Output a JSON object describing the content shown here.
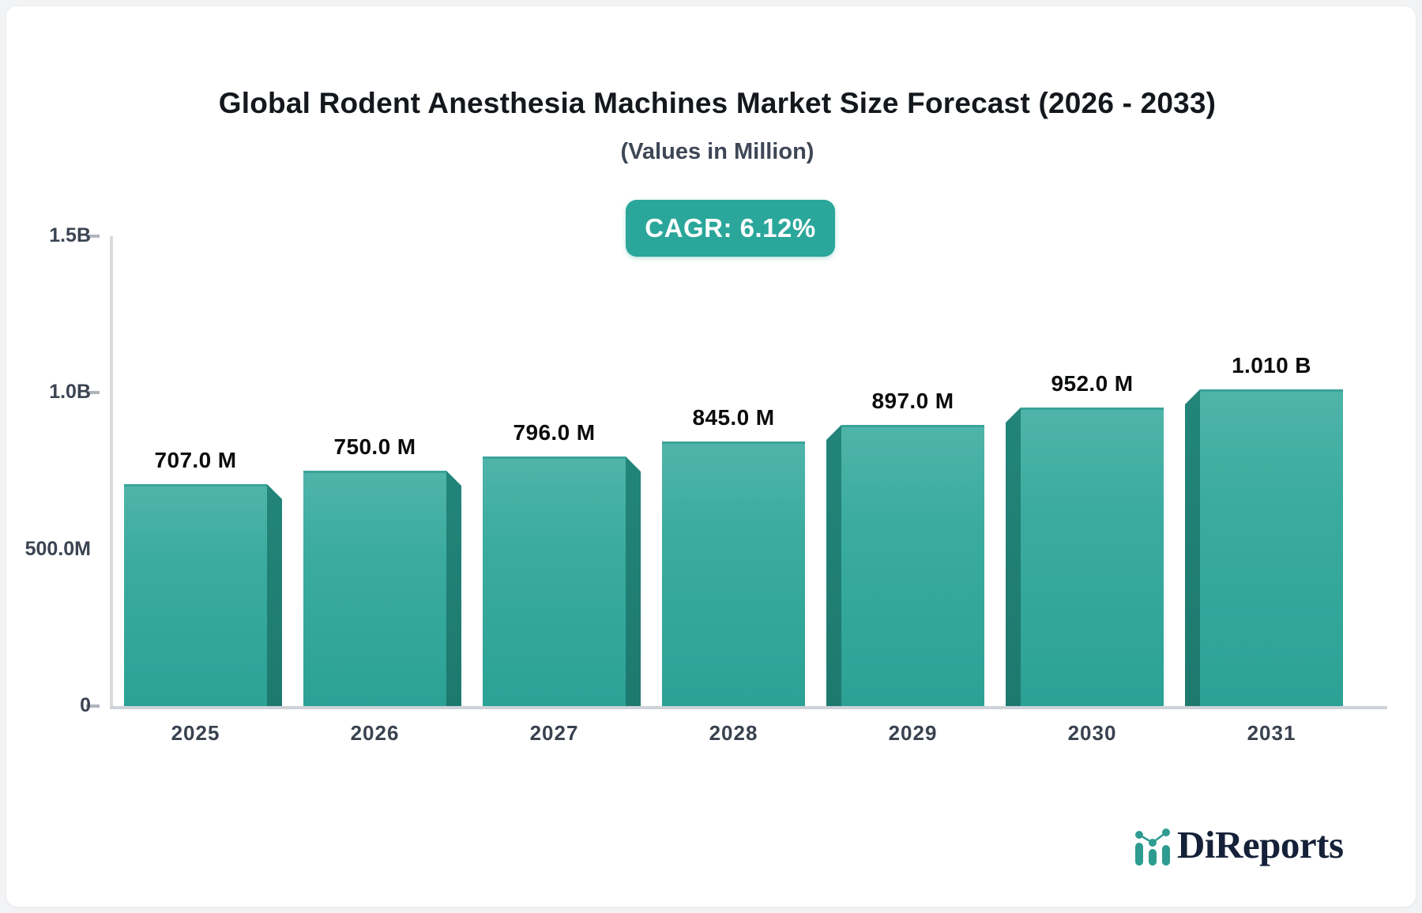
{
  "page": {
    "background": "#f2f3f5",
    "card_background": "#ffffff"
  },
  "header": {
    "title": "Global Rodent Anesthesia Machines Market Size Forecast (2026 - 2033)",
    "subtitle": "(Values in Million)"
  },
  "cagr": {
    "label": "CAGR: 6.12%",
    "background": "#2aa69a"
  },
  "watermark": {
    "brand": "DiReports",
    "icon": "bar-chart-logo-icon"
  },
  "chart_data": {
    "type": "bar",
    "title": "Global Rodent Anesthesia Machines Market Size Forecast (2026 - 2033)",
    "subtitle": "(Values in Million)",
    "unit": "Million USD",
    "cagr": "6.12%",
    "categories": [
      "2025",
      "2026",
      "2027",
      "2028",
      "2029",
      "2030",
      "2031"
    ],
    "values": [
      707,
      750,
      796,
      845,
      897,
      952,
      1010
    ],
    "bar_labels": [
      "707.0 M",
      "750.0 M",
      "796.0 M",
      "845.0 M",
      "897.0 M",
      "952.0 M",
      "1.010 B"
    ],
    "ylim": [
      0,
      1500
    ],
    "y_ticks": [
      {
        "label": "0",
        "value": 0,
        "dash": true
      },
      {
        "label": "500.0M",
        "value": 500,
        "dash": false
      },
      {
        "label": "1.0B",
        "value": 1000,
        "dash": true
      },
      {
        "label": "1.5B",
        "value": 1500,
        "dash": true
      }
    ],
    "grid": false,
    "legend": false,
    "bar_color_top": "#4fb4aa",
    "bar_color_bottom": "#2ba295",
    "bar_side_color": "#1e7c72"
  }
}
